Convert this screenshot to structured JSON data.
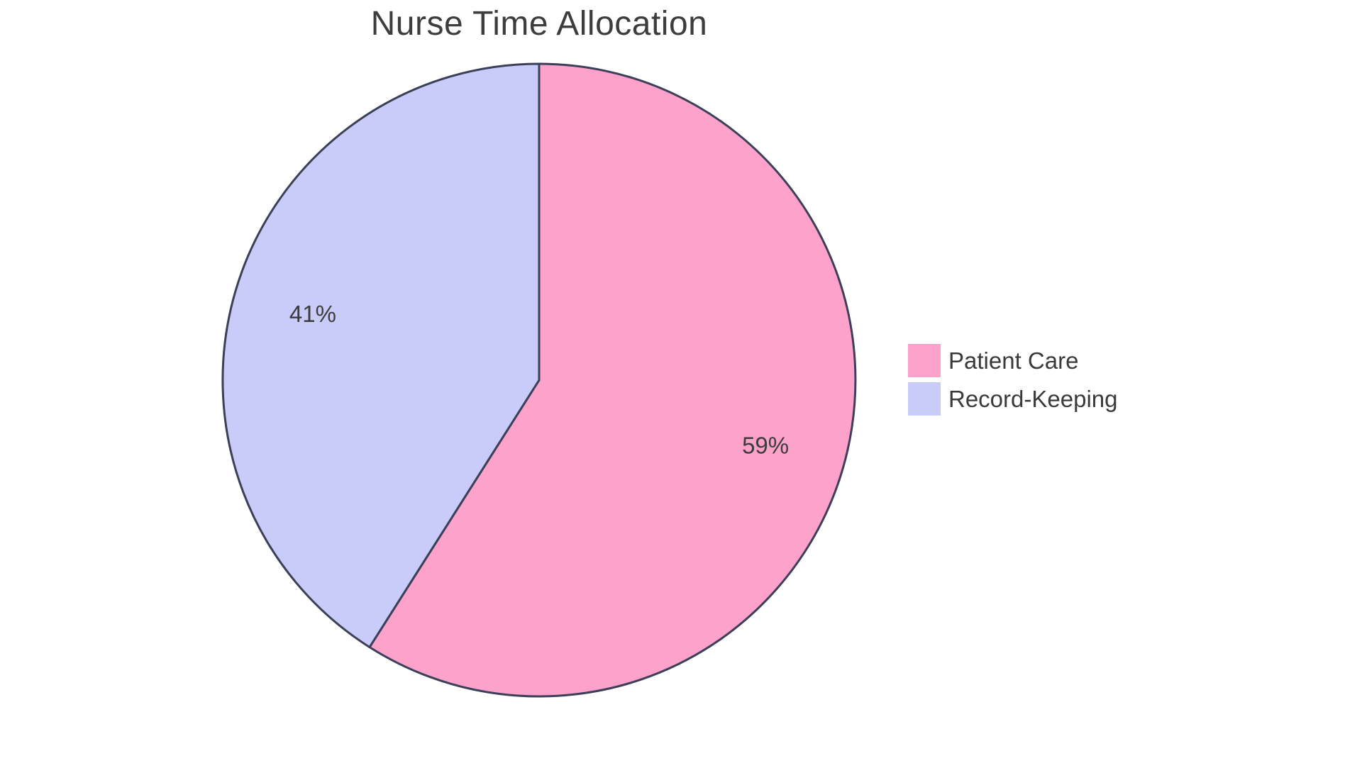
{
  "page": {
    "background_color": "#ffffff"
  },
  "chart_data": {
    "type": "pie",
    "title": "Nurse Time Allocation",
    "labels": [
      "Patient Care",
      "Record-Keeping"
    ],
    "values": [
      59,
      41
    ],
    "slice_labels": [
      "59%",
      "41%"
    ],
    "colors": [
      "#FCA2CB",
      "#C9CBF8"
    ],
    "stroke_color": "#3B3F58",
    "stroke_width": 3,
    "text_color": "#3C3C3C",
    "start_angle": "top",
    "direction": "clockwise",
    "legend_position": "right"
  },
  "legend": {
    "items": [
      {
        "label": "Patient Care",
        "color": "#FCA2CB"
      },
      {
        "label": "Record-Keeping",
        "color": "#C9CBF8"
      }
    ]
  }
}
